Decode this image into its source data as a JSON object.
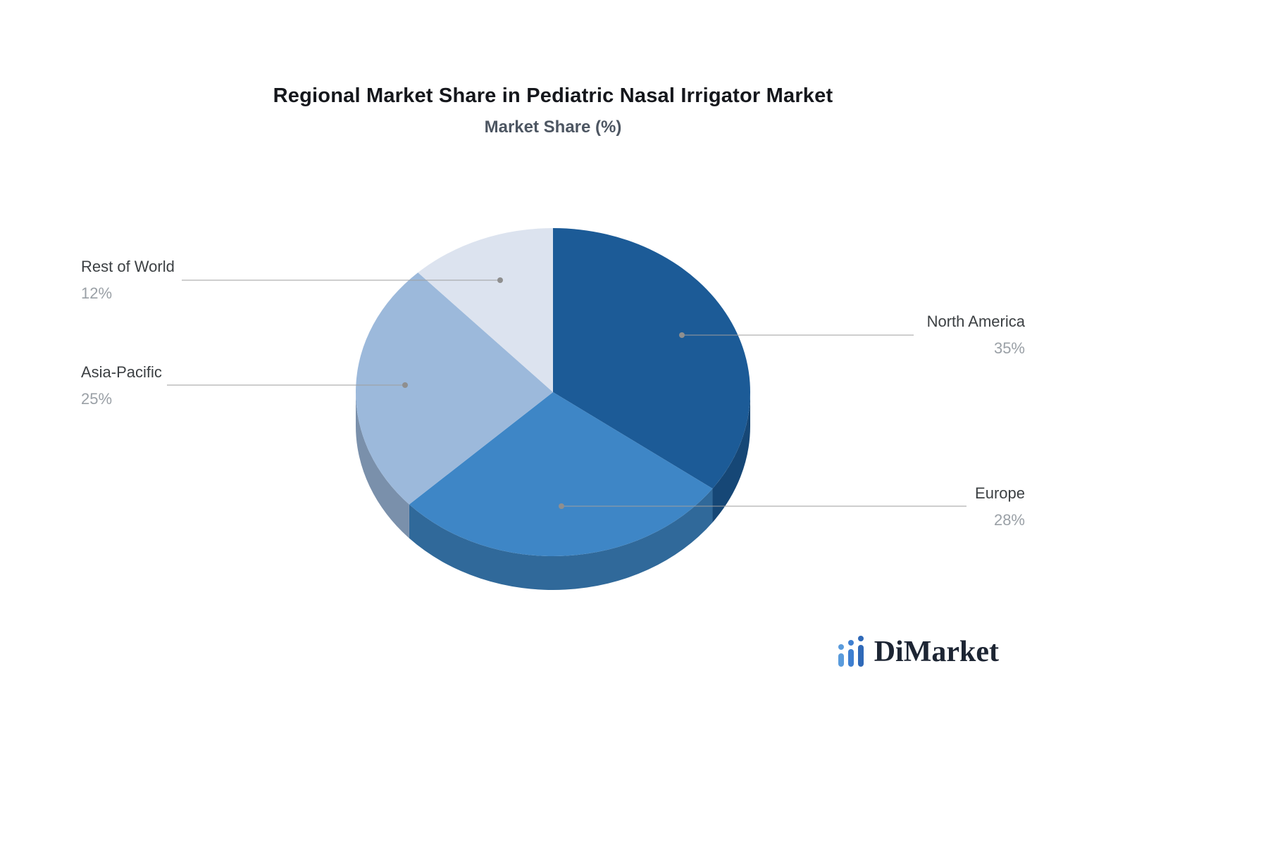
{
  "page": {
    "background": "#ffffff"
  },
  "chart_data": {
    "type": "pie",
    "style": "3d",
    "title": "Regional Market Share in Pediatric Nasal Irrigator Market",
    "subtitle": "Market Share (%)",
    "categories": [
      "North America",
      "Europe",
      "Asia-Pacific",
      "Rest of World"
    ],
    "values": [
      35,
      28,
      25,
      12
    ],
    "percent_labels": [
      "35%",
      "28%",
      "25%",
      "12%"
    ],
    "colors": [
      "#1C5B97",
      "#3E86C6",
      "#9CB9DB",
      "#DCE3EF"
    ],
    "start_angle_deg": -90,
    "direction": "clockwise",
    "legend": "none",
    "label_text_color": "#3c4043",
    "percent_text_color": "#9aa0a6",
    "callout_line_color": "#9e9e9e"
  },
  "branding": {
    "logo_text": "DiMarket",
    "logo_icon": "bar-chart-icon",
    "logo_text_color": "#1d2533",
    "icon_colors": [
      "#5a9bdc",
      "#3e7fd1",
      "#2f69b8"
    ]
  }
}
